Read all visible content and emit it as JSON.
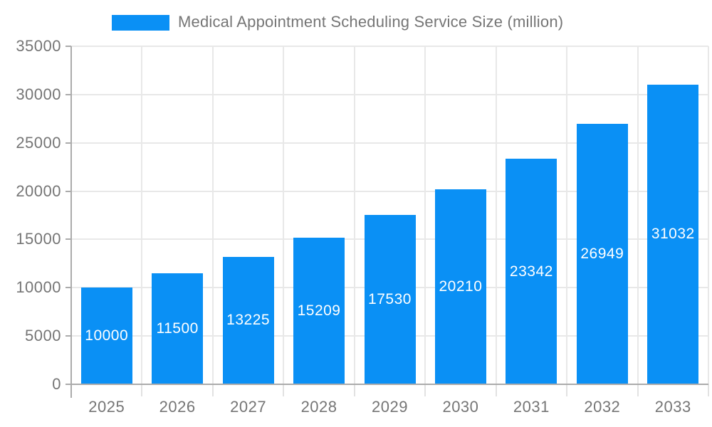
{
  "chart_data": {
    "type": "bar",
    "title": "Medical Appointment Scheduling Service Size (million)",
    "legend": {
      "label": "Medical Appointment Scheduling Service Size (million)",
      "position": "top"
    },
    "categories": [
      "2025",
      "2026",
      "2027",
      "2028",
      "2029",
      "2030",
      "2031",
      "2032",
      "2033"
    ],
    "values": [
      10000,
      11500,
      13225,
      15209,
      17530,
      20210,
      23342,
      26949,
      31032
    ],
    "value_labels_shown": true,
    "value_label_position": "center-inside-bar",
    "xlabel": "",
    "ylabel": "",
    "ylim": [
      0,
      35000
    ],
    "ytick_step": 5000,
    "ytick_labels": [
      "0",
      "5000",
      "10000",
      "15000",
      "20000",
      "25000",
      "30000",
      "35000"
    ],
    "grid": true,
    "colors": {
      "bar": "#0a90f5",
      "value_label": "#ffffff",
      "axis_label": "#757575",
      "legend_text": "#757575",
      "gridline": "#e8e8e8",
      "axis_line": "#ababab",
      "minor_tick": "#e2e2e2",
      "background": "#ffffff"
    }
  }
}
